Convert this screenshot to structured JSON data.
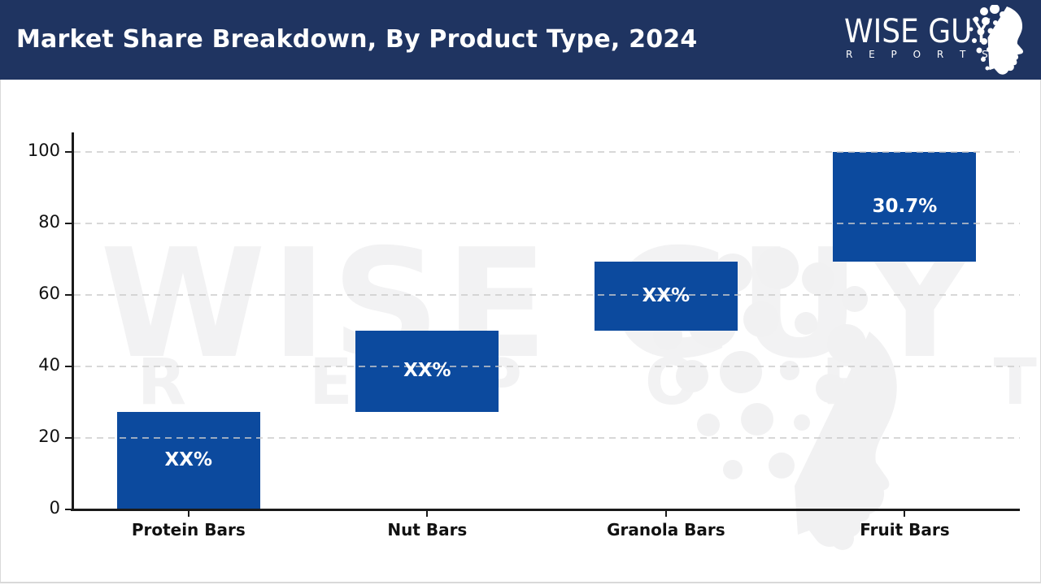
{
  "header": {
    "title": "Market Share Breakdown, By Product Type, 2024",
    "bg_color": "#1F3461",
    "logo": {
      "line1": "WISE GUY",
      "line2": "R E P O R T S"
    }
  },
  "watermark": {
    "line1": "WISE GUY",
    "line2": "R E P O R T S"
  },
  "chart_data": {
    "type": "bar",
    "subtype": "waterfall",
    "title": "Market Share Breakdown, By Product Type, 2024",
    "categories": [
      "Protein Bars",
      "Nut Bars",
      "Granola Bars",
      "Fruit Bars"
    ],
    "segments": [
      {
        "category": "Protein Bars",
        "start": 0,
        "end": 27.2,
        "value": 27.2,
        "label": "XX%"
      },
      {
        "category": "Nut Bars",
        "start": 27.2,
        "end": 50.0,
        "value": 22.8,
        "label": "XX%"
      },
      {
        "category": "Granola Bars",
        "start": 50.0,
        "end": 69.3,
        "value": 19.3,
        "label": "XX%"
      },
      {
        "category": "Fruit Bars",
        "start": 69.3,
        "end": 100,
        "value": 30.7,
        "label": "30.7%"
      }
    ],
    "xlabel": "",
    "ylabel": "",
    "ylim": [
      0,
      100
    ],
    "y_ticks": [
      "0",
      "20",
      "40",
      "60",
      "80",
      "100"
    ],
    "grid": "dashed horizontal",
    "legend": "none",
    "bar_color": "#0C4A9E",
    "bar_label_color": "#FFFFFF",
    "axis_color": "#1A1A1A",
    "gridline_color": "#DDDDDD"
  }
}
